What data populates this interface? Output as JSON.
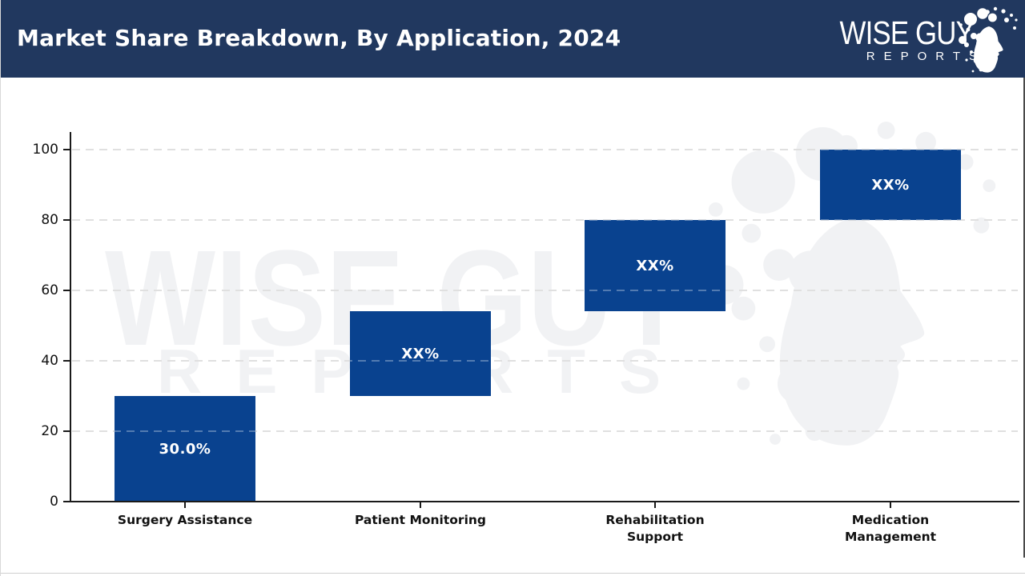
{
  "header": {
    "title": "Market Share Breakdown, By Application, 2024",
    "logo_line1": "WISE GUY",
    "logo_line2": "REPORTS"
  },
  "watermark": {
    "line1": "WISE GUY",
    "line2": "REPORTS"
  },
  "chart_data": {
    "type": "bar",
    "variant": "waterfall",
    "title": "Market Share Breakdown, By Application, 2024",
    "categories": [
      "Surgery Assistance",
      "Patient Monitoring",
      "Rehabilitation Support",
      "Medication Management"
    ],
    "category_lines": [
      [
        "Surgery Assistance"
      ],
      [
        "Patient Monitoring"
      ],
      [
        "Rehabilitation",
        "Support"
      ],
      [
        "Medication",
        "Management"
      ]
    ],
    "series": [
      {
        "name": "Market share (%)",
        "segments": [
          {
            "category": "Surgery Assistance",
            "start": 0,
            "end": 30,
            "label": "30.0%"
          },
          {
            "category": "Patient Monitoring",
            "start": 30,
            "end": 54,
            "label": "XX%"
          },
          {
            "category": "Rehabilitation Support",
            "start": 54,
            "end": 80,
            "label": "XX%"
          },
          {
            "category": "Medication Management",
            "start": 80,
            "end": 100,
            "label": "XX%"
          }
        ]
      }
    ],
    "xlabel": "",
    "ylabel": "",
    "yticks": [
      0,
      20,
      40,
      60,
      80,
      100
    ],
    "ylim": [
      0,
      104
    ],
    "grid": {
      "axis": "y",
      "style": "dashed"
    },
    "legend": "none",
    "colors": {
      "bar": "#09428F",
      "grid": "#D2D2D2",
      "axis": "#1A1A1A",
      "bar_label": "#FFFFFF",
      "header_bg": "#21385F",
      "watermark": "#F1F2F4"
    }
  }
}
